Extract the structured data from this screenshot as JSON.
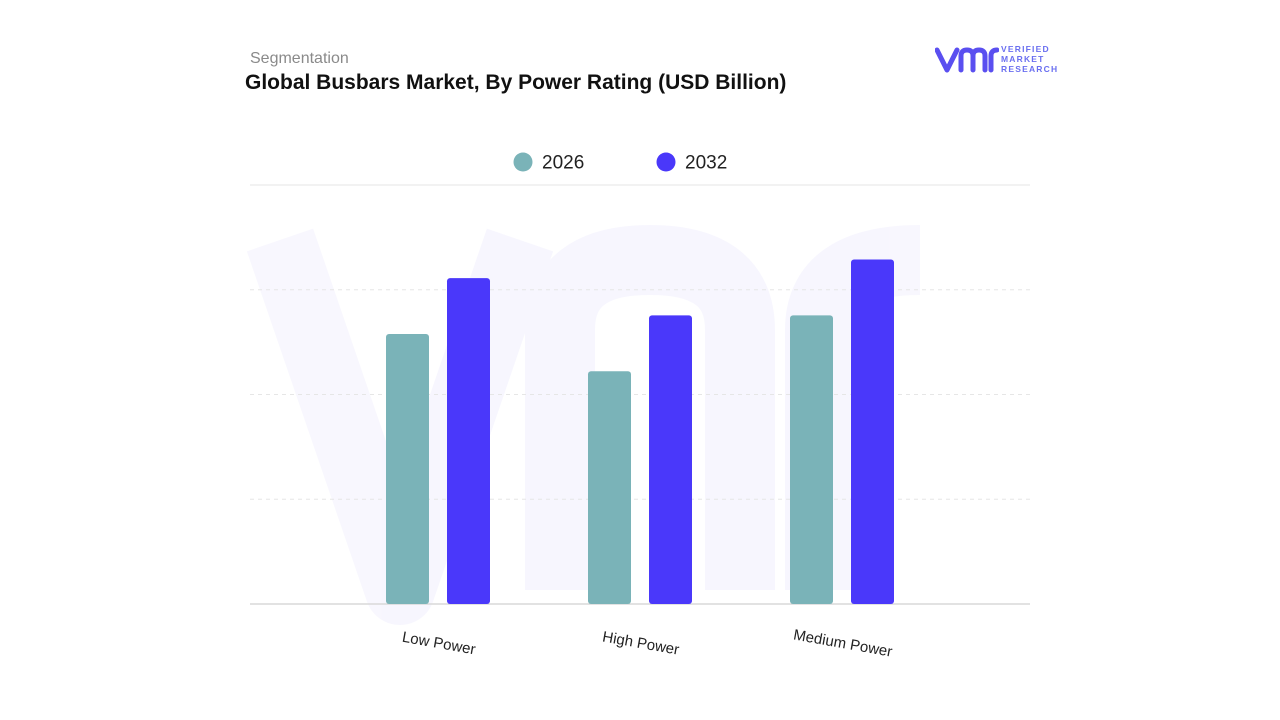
{
  "header": {
    "section": "Segmentation",
    "title": "Global Busbars Market, By Power Rating (USD Billion)"
  },
  "logo": {
    "mark": "vmr",
    "line1": "VERIFIED",
    "line2": "MARKET",
    "line3": "RESEARCH",
    "color": "#5a4ff0"
  },
  "chart_data": {
    "type": "bar",
    "title": "Global Busbars Market, By Power Rating (USD Billion)",
    "categories": [
      "Low Power",
      "High Power",
      "Medium Power"
    ],
    "series": [
      {
        "name": "2026",
        "values": [
          2.9,
          2.5,
          3.1
        ],
        "color": "#7ab3b8"
      },
      {
        "name": "2032",
        "values": [
          3.5,
          3.1,
          3.7
        ],
        "color": "#4a38fa"
      }
    ],
    "ylim": [
      0,
      4.5
    ],
    "grid": true,
    "legend": "top-center",
    "xlabel": "",
    "ylabel": ""
  }
}
